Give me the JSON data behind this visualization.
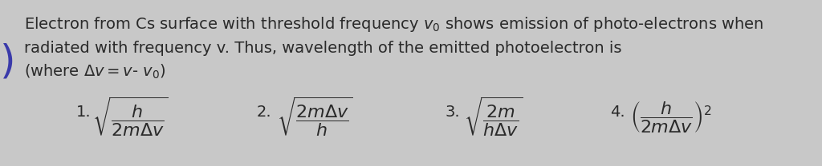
{
  "background_color": "#c8c8c8",
  "text_color": "#2a2a2a",
  "figsize": [
    10.24,
    2.08
  ],
  "dpi": 100,
  "line1": "Electron from Cs surface with threshold frequency $v_0$ shows emission of photo-electrons when",
  "line2": "radiated with frequency v. Thus, wavelength of the emitted photoelectron is",
  "line3": "(where $\\Delta v = v\\text{- }v_0$)",
  "opt1_num": "1.",
  "opt1_expr": "$\\sqrt{\\dfrac{h}{2m\\Delta v}}$",
  "opt2_num": "2.",
  "opt2_expr": "$\\sqrt{\\dfrac{2m\\Delta v}{h}}$",
  "opt3_num": "3.",
  "opt3_expr": "$\\sqrt{\\dfrac{2m}{h\\Delta v}}$",
  "opt4_num": "4.",
  "opt4_expr": "$\\left(\\dfrac{h}{2m\\Delta v}\\right)^{2}$",
  "font_size": 14,
  "math_size": 16
}
